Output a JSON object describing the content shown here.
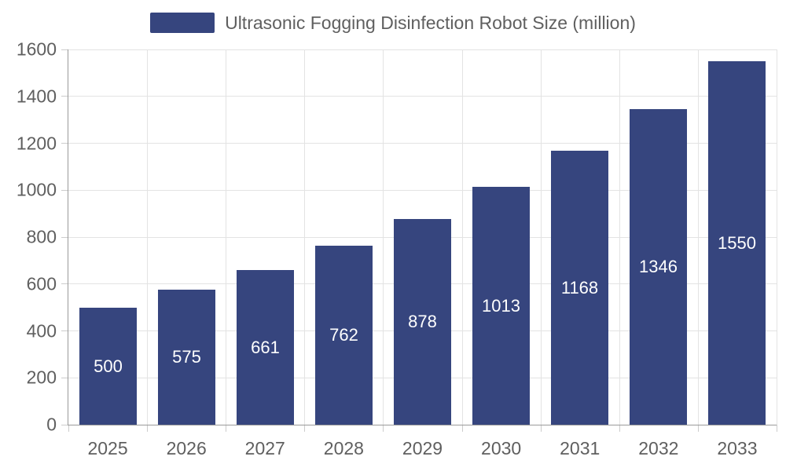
{
  "legend": {
    "label": "Ultrasonic Fogging Disinfection Robot Size (million)"
  },
  "colors": {
    "bar": "#36457E",
    "grid": "#e3e3e3",
    "axis": "#9a9a9a",
    "tick": "#cccccc",
    "tick_label": "#5f5f5f",
    "bar_label": "#ffffff",
    "background": "#ffffff"
  },
  "chart_data": {
    "type": "bar",
    "title": "",
    "xlabel": "",
    "ylabel": "",
    "categories": [
      "2025",
      "2026",
      "2027",
      "2028",
      "2029",
      "2030",
      "2031",
      "2032",
      "2033"
    ],
    "values": [
      500,
      575,
      661,
      762,
      878,
      1013,
      1168,
      1346,
      1550
    ],
    "series_name": "Ultrasonic Fogging Disinfection Robot Size (million)",
    "ylim": [
      0,
      1600
    ],
    "yticks": [
      0,
      200,
      400,
      600,
      800,
      1000,
      1200,
      1400,
      1600
    ],
    "grid": true,
    "legend_position": "top",
    "bar_labels_visible": true
  }
}
